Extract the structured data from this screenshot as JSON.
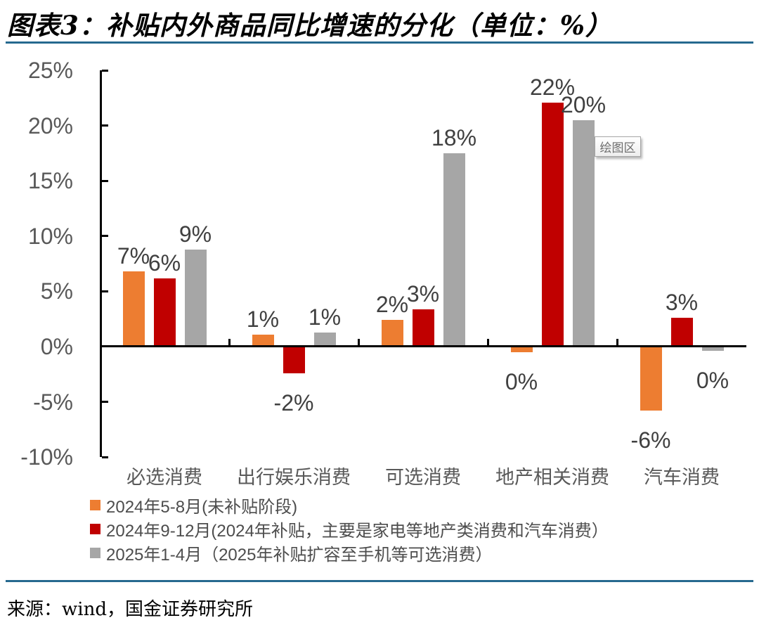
{
  "page": {
    "title": "图表3：补贴内外商品同比增速的分化（单位：%）",
    "source": "来源：wind，国金证券研究所",
    "colors": {
      "divider": "#26698F",
      "axis": "#000000",
      "tick_text": "#595959",
      "data_label_text": "#404040"
    }
  },
  "chart_data": {
    "type": "bar",
    "title": "补贴内外商品同比增速的分化",
    "unit": "%",
    "categories": [
      "必选消费",
      "出行娱乐消费",
      "可选消费",
      "地产相关消费",
      "汽车消费"
    ],
    "series": [
      {
        "name": "2024年5-8月(未补贴阶段)",
        "color": "#ED7D31",
        "values": [
          6.8,
          1.1,
          2.4,
          -0.5,
          -5.8
        ],
        "labels": [
          "7%",
          "1%",
          "2%",
          "0%",
          "-6%"
        ]
      },
      {
        "name": "2024年9-12月(2024年补贴，主要是家电等地产类消费和汽车消费）",
        "color": "#C00000",
        "values": [
          6.2,
          -2.4,
          3.4,
          22.1,
          2.6
        ],
        "labels": [
          "6%",
          "-2%",
          "3%",
          "22%",
          "3%"
        ]
      },
      {
        "name": "2025年1-4月（2025年补贴扩容至手机等可选消费）",
        "color": "#A6A6A6",
        "values": [
          8.8,
          1.3,
          17.5,
          20.5,
          -0.4
        ],
        "labels": [
          "9%",
          "1%",
          "18%",
          "20%",
          "0%"
        ]
      }
    ],
    "ylim": [
      -10,
      25
    ],
    "ytick_labels": [
      "25%",
      "20%",
      "15%",
      "10%",
      "5%",
      "0%",
      "-5%",
      "-10%"
    ],
    "ytick_values": [
      25,
      20,
      15,
      10,
      5,
      0,
      -5,
      -10
    ],
    "legend_position": "bottom-left",
    "grid": false,
    "plot_area_tooltip": "绘图区"
  }
}
